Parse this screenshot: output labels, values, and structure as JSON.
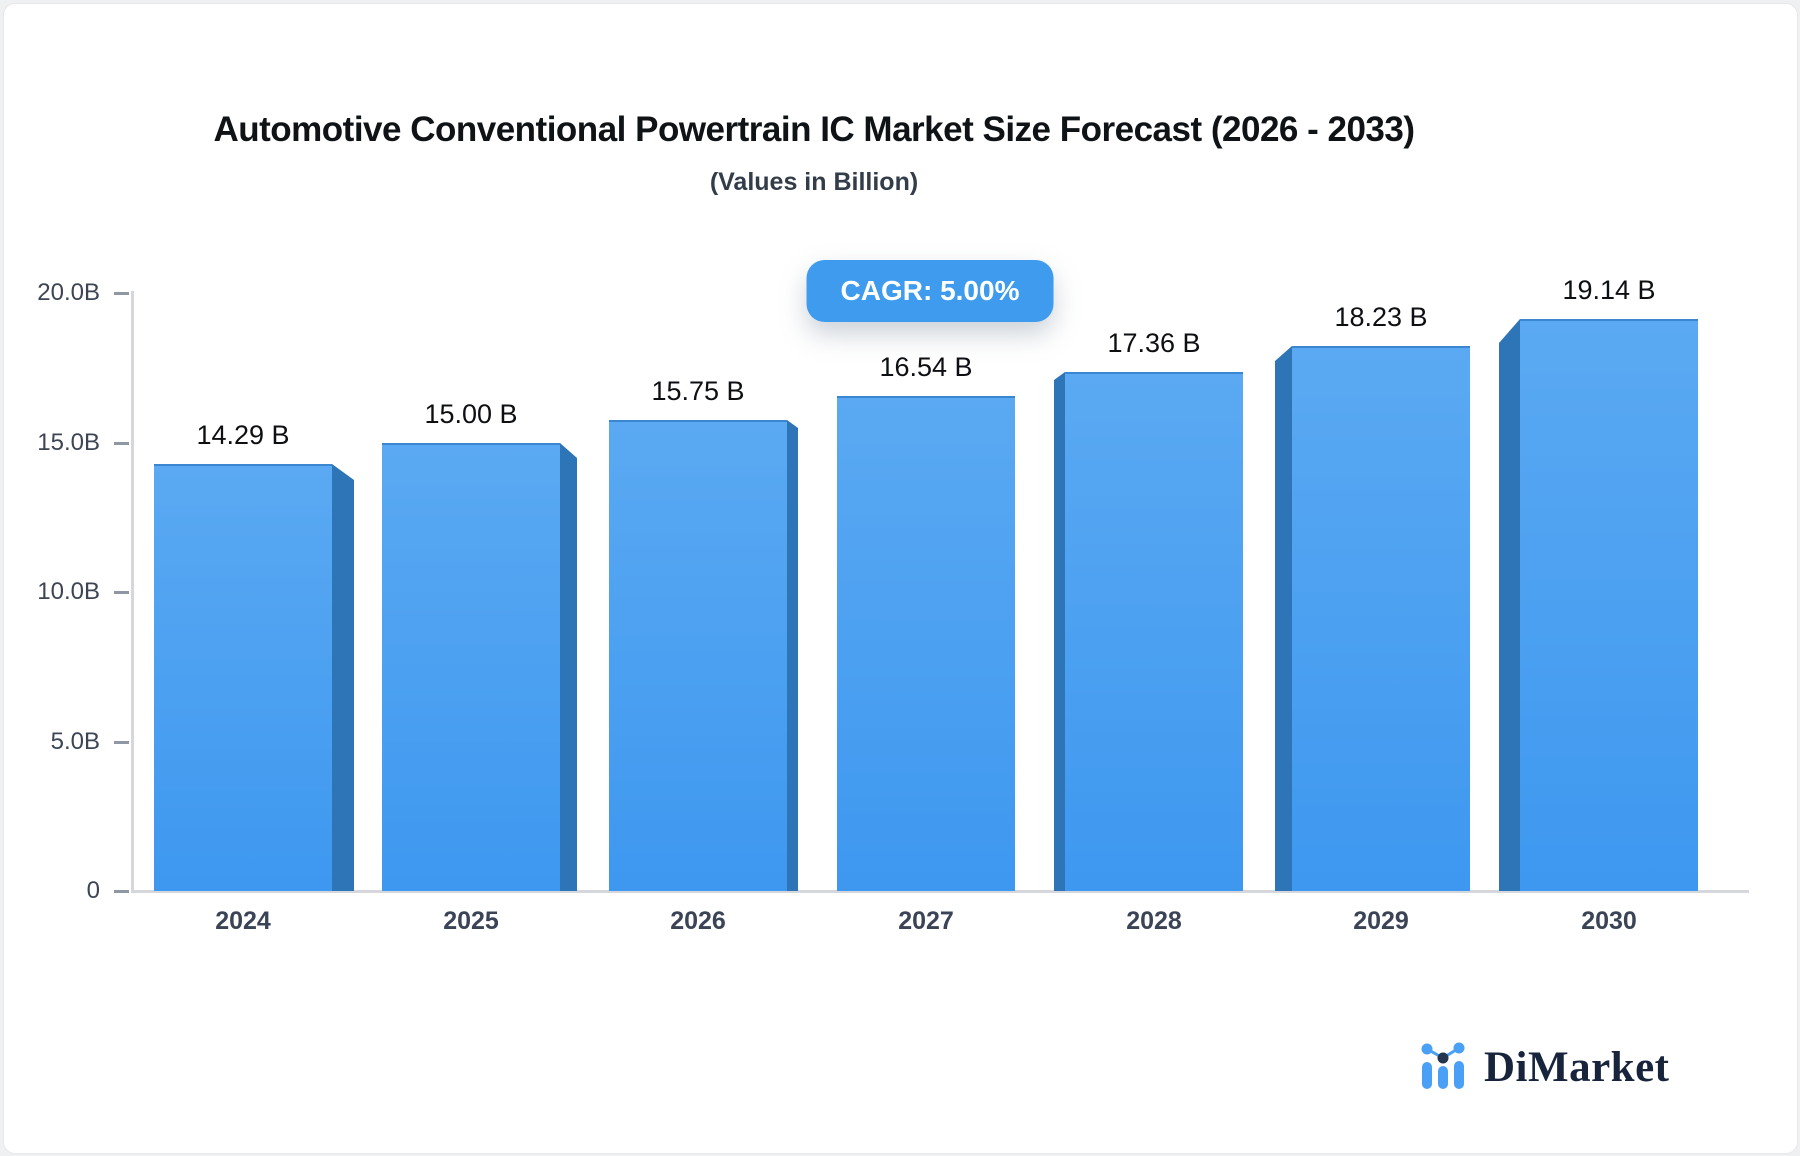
{
  "header": {
    "title": "Automotive Conventional Powertrain IC Market Size Forecast (2026 - 2033)",
    "subtitle": "(Values in Billion)"
  },
  "badge": {
    "label": "CAGR: 5.00%",
    "bg": "#3e9bee",
    "text_color": "#ffffff"
  },
  "chart_data": {
    "type": "bar",
    "categories": [
      "2024",
      "2025",
      "2026",
      "2027",
      "2028",
      "2029",
      "2030"
    ],
    "values": [
      14.29,
      15.0,
      15.75,
      16.54,
      17.36,
      18.23,
      19.14
    ],
    "value_labels": [
      "14.29 B",
      "15.00 B",
      "15.75 B",
      "16.54 B",
      "17.36 B",
      "18.23 B",
      "19.14 B"
    ],
    "title": "Automotive Conventional Powertrain IC Market Size Forecast (2026 - 2033)",
    "subtitle": "(Values in Billion)",
    "xlabel": "",
    "ylabel": "",
    "ylim": [
      0,
      20
    ],
    "y_ticks": [
      {
        "value": 20,
        "label": "20.0B"
      },
      {
        "value": 15,
        "label": "15.0B"
      },
      {
        "value": 10,
        "label": "10.0B"
      },
      {
        "value": 5,
        "label": "5.0B"
      },
      {
        "value": 0,
        "label": "0"
      }
    ],
    "grid": false,
    "legend": "none",
    "bar_style": "3d-extruded",
    "colors": {
      "bar_face_top": "#5aa9f2",
      "bar_face_bottom": "#3e98f0",
      "bar_side": "#2e75b7",
      "bar_top_edge": "#3a86d1",
      "axis_line": "#d6d7dd",
      "tick": "#8f97a4",
      "y_label": "#3d4554",
      "x_label": "#3a4456"
    }
  },
  "logo": {
    "brand": "DiMarket",
    "icon": "mini-bar-chart-icon",
    "text_color": "#17243b",
    "icon_color": "#4aa0f4",
    "icon_dot_dark": "#24364e"
  }
}
